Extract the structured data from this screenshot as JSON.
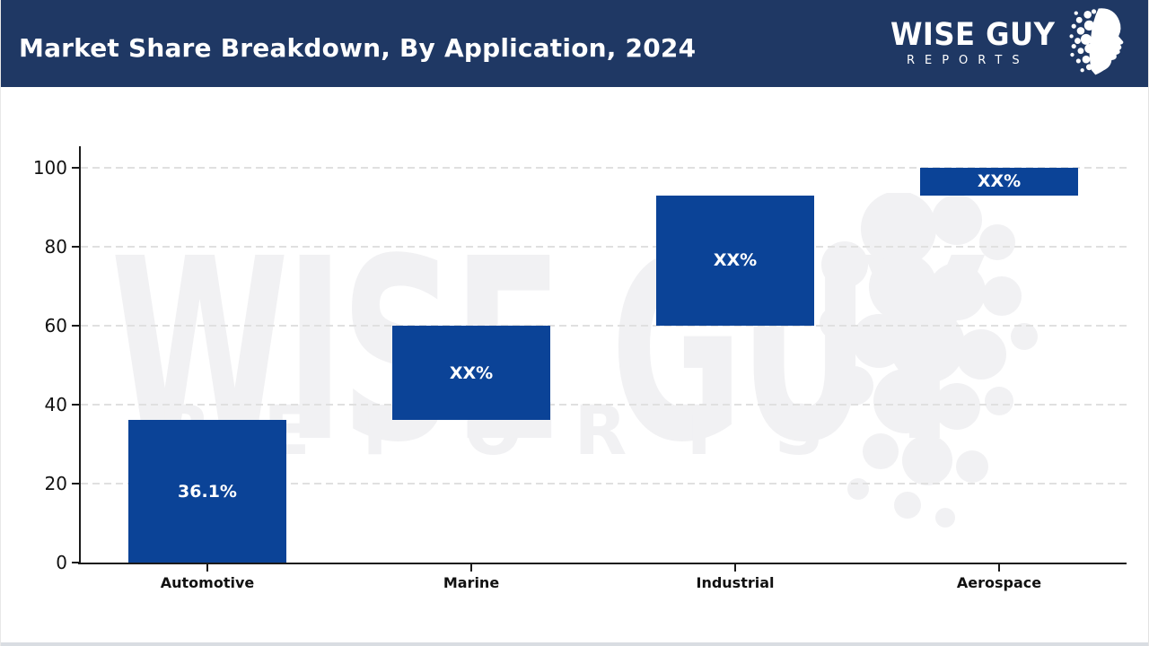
{
  "header": {
    "title": "Market Share Breakdown, By Application, 2024",
    "logo": {
      "line1": "WISE GUY",
      "line2": "REPORTS"
    }
  },
  "watermark": {
    "line1": "WISE GUY",
    "line2": "REPORTS"
  },
  "chart_data": {
    "type": "bar",
    "subtype": "waterfall",
    "title": "Market Share Breakdown, By Application, 2024",
    "categories": [
      "Automotive",
      "Marine",
      "Industrial",
      "Aerospace"
    ],
    "segments": [
      {
        "category": "Automotive",
        "start": 0,
        "end": 36.1,
        "label": "36.1%"
      },
      {
        "category": "Marine",
        "start": 36.1,
        "end": 60,
        "label": "XX%"
      },
      {
        "category": "Industrial",
        "start": 60,
        "end": 93,
        "label": "XX%"
      },
      {
        "category": "Aerospace",
        "start": 93,
        "end": 100,
        "label": "XX%"
      }
    ],
    "xlabel": "",
    "ylabel": "",
    "ylim": [
      0,
      105
    ],
    "yticks": [
      0,
      20,
      40,
      60,
      80,
      100
    ],
    "grid": "horizontal-dashed",
    "legend": "none",
    "bar_color": "#0b4397",
    "bar_label_color": "#ffffff"
  },
  "colors": {
    "header_bg": "#1f3864",
    "bar": "#0b4397",
    "grid": "#e0e0e0",
    "axis": "#1a1a1a",
    "watermark": "#f1f1f3",
    "footer_strip": "#d9dde2"
  }
}
